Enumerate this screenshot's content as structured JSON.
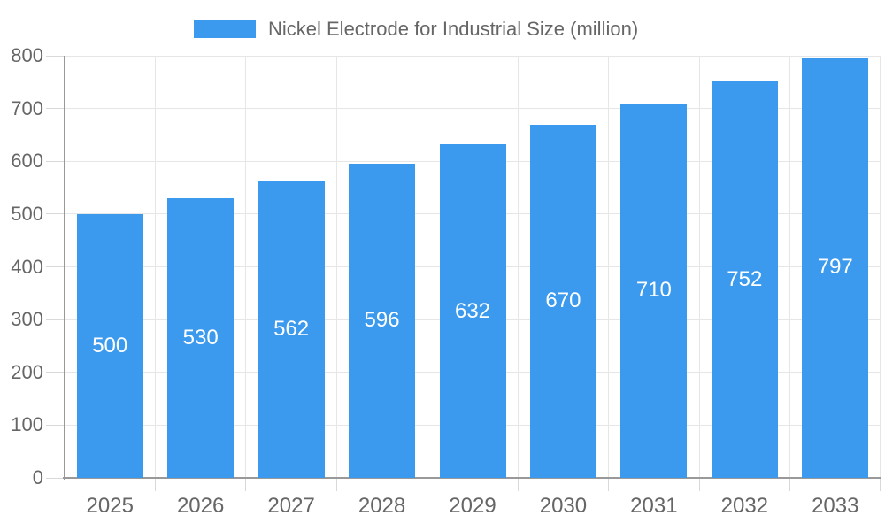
{
  "chart_data": {
    "type": "bar",
    "title": "Nickel Electrode for Industrial Size (million)",
    "categories": [
      "2025",
      "2026",
      "2027",
      "2028",
      "2029",
      "2030",
      "2031",
      "2032",
      "2033"
    ],
    "values": [
      500,
      530,
      562,
      596,
      632,
      670,
      710,
      752,
      797
    ],
    "xlabel": "",
    "ylabel": "",
    "ylim": [
      0,
      800
    ],
    "yticks": [
      0,
      100,
      200,
      300,
      400,
      500,
      600,
      700,
      800
    ],
    "grid": true,
    "legend_position": "top",
    "value_labels": "inside-center"
  },
  "colors": {
    "bar": "#3B9AEE",
    "value_text": "#FFFFFF",
    "axis_text": "#666666",
    "legend_text": "#666666",
    "grid": "#E6E6E6",
    "axis_line": "#999999",
    "tick": "#D9D9D9",
    "background": "#FFFFFF"
  }
}
